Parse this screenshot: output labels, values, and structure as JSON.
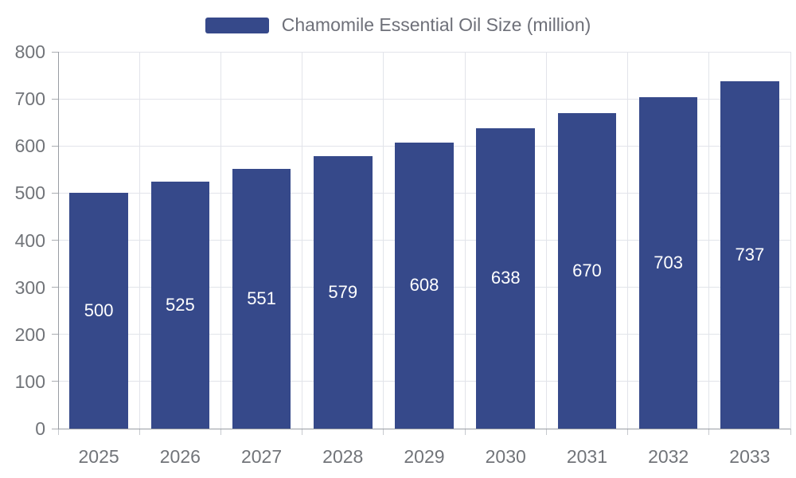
{
  "chart_data": {
    "type": "bar",
    "legend": "Chamomile Essential Oil Size (million)",
    "categories": [
      "2025",
      "2026",
      "2027",
      "2028",
      "2029",
      "2030",
      "2031",
      "2032",
      "2033"
    ],
    "values": [
      500,
      525,
      551,
      579,
      608,
      638,
      670,
      703,
      737
    ],
    "value_labels": [
      "500",
      "525",
      "551",
      "579",
      "608",
      "638",
      "670",
      "703",
      "737"
    ],
    "yticks": [
      "0",
      "100",
      "200",
      "300",
      "400",
      "500",
      "600",
      "700",
      "800"
    ],
    "ylim": [
      0,
      800
    ],
    "grid": true,
    "legend_position": "top-center",
    "bar_color": "#36498a",
    "value_label_color": "#ffffff",
    "axis_text_color": "#717479",
    "legend_text_color": "#6e7079",
    "gridline_color": "#e2e4ea"
  }
}
